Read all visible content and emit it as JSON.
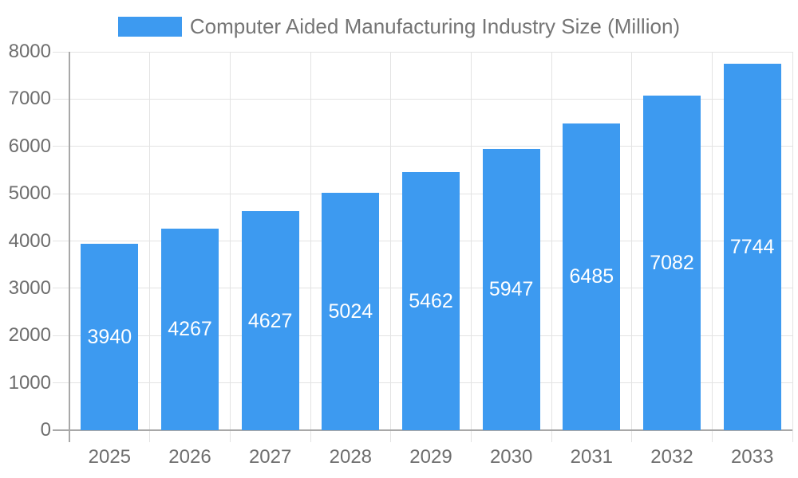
{
  "legend": {
    "label": "Computer Aided Manufacturing Industry Size (Million)"
  },
  "chart_data": {
    "type": "bar",
    "title": "Computer Aided Manufacturing Industry Size (Million)",
    "categories": [
      "2025",
      "2026",
      "2027",
      "2028",
      "2029",
      "2030",
      "2031",
      "2032",
      "2033"
    ],
    "series": [
      {
        "name": "Computer Aided Manufacturing Industry Size (Million)",
        "values": [
          3940,
          4267,
          4627,
          5024,
          5462,
          5947,
          6485,
          7082,
          7744
        ]
      }
    ],
    "values": [
      3940,
      4267,
      4627,
      5024,
      5462,
      5947,
      6485,
      7082,
      7744
    ],
    "value_labels": [
      "3940",
      "4267",
      "4627",
      "5024",
      "5462",
      "5947",
      "6485",
      "7082",
      "7744"
    ],
    "xlabel": "",
    "ylabel": "",
    "ylim": [
      0,
      8000
    ],
    "ytick_step": 1000,
    "yticks": [
      "0",
      "1000",
      "2000",
      "3000",
      "4000",
      "5000",
      "6000",
      "7000",
      "8000"
    ],
    "grid": true,
    "legend_position": "top",
    "colors": {
      "bar": "#3D9AF0",
      "value_label": "#FFFFFF",
      "axis_text": "#6E6E6E",
      "legend_text": "#757575",
      "gridline": "#E3E3E3",
      "axis_line": "#A8A8A8",
      "background": "#FFFFFF"
    }
  }
}
